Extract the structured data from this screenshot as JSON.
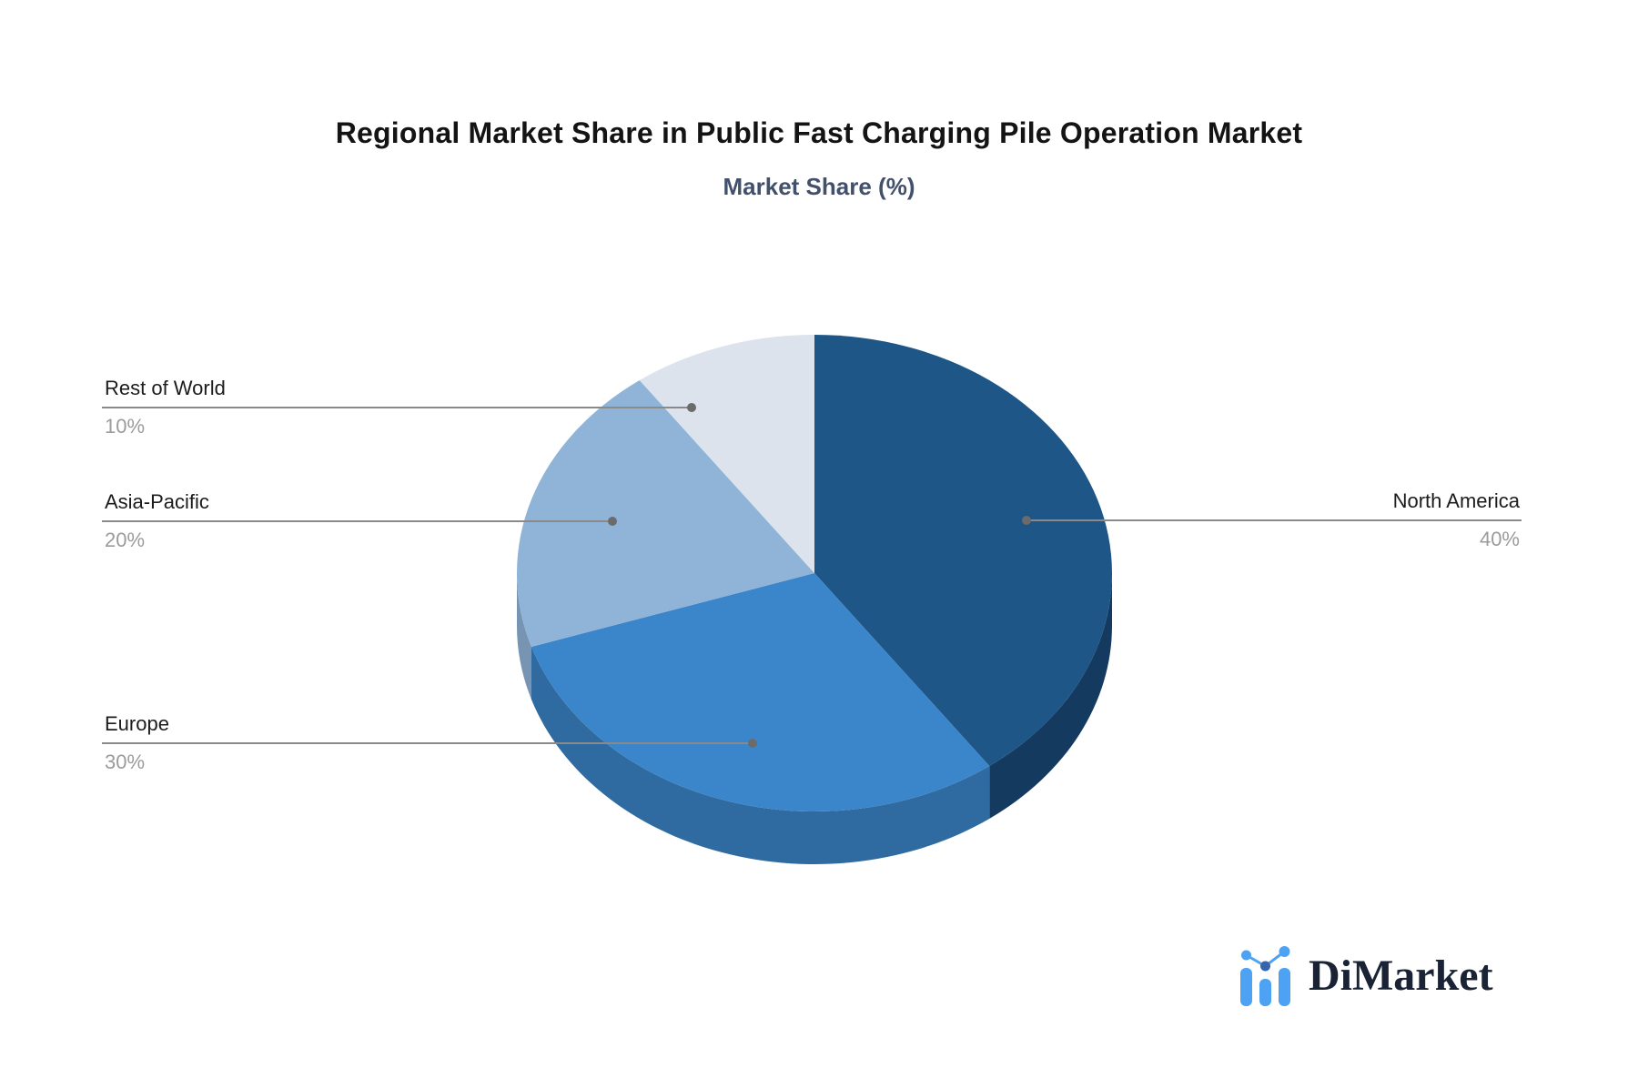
{
  "header": {
    "title": "Regional Market Share in Public Fast Charging Pile Operation Market",
    "subtitle": "Market Share (%)"
  },
  "chart_data": {
    "type": "pie",
    "style": "3d-pie",
    "title": "Regional Market Share in Public Fast Charging Pile Operation Market",
    "subtitle": "Market Share (%)",
    "unit": "%",
    "start_angle_deg": 0,
    "direction": "clockwise",
    "slices": [
      {
        "label": "North America",
        "value": 40,
        "display": "40%",
        "color": "#1d5687",
        "side_color": "#153a5f"
      },
      {
        "label": "Europe",
        "value": 30,
        "display": "30%",
        "color": "#3b86ca",
        "side_color": "#2f6ba0"
      },
      {
        "label": "Asia-Pacific",
        "value": 20,
        "display": "20%",
        "color": "#90b4d8",
        "side_color": "#7795b3"
      },
      {
        "label": "Rest of World",
        "value": 10,
        "display": "10%",
        "color": "#dce3ed",
        "side_color": "#b9c4d3"
      }
    ],
    "label_text_color": "#1c1c1c",
    "value_text_color": "#9b9b9b",
    "leader_line_color": "#8a8a8a",
    "leader_dot_color": "#6b6b6b",
    "legend_position": "none",
    "grid": false
  },
  "brand": {
    "name": "DiMarket",
    "icon": "bar-line-chart-icon",
    "icon_color": "#4da2f4",
    "icon_accent_color": "#3566ad",
    "text_color": "#1a2336"
  }
}
